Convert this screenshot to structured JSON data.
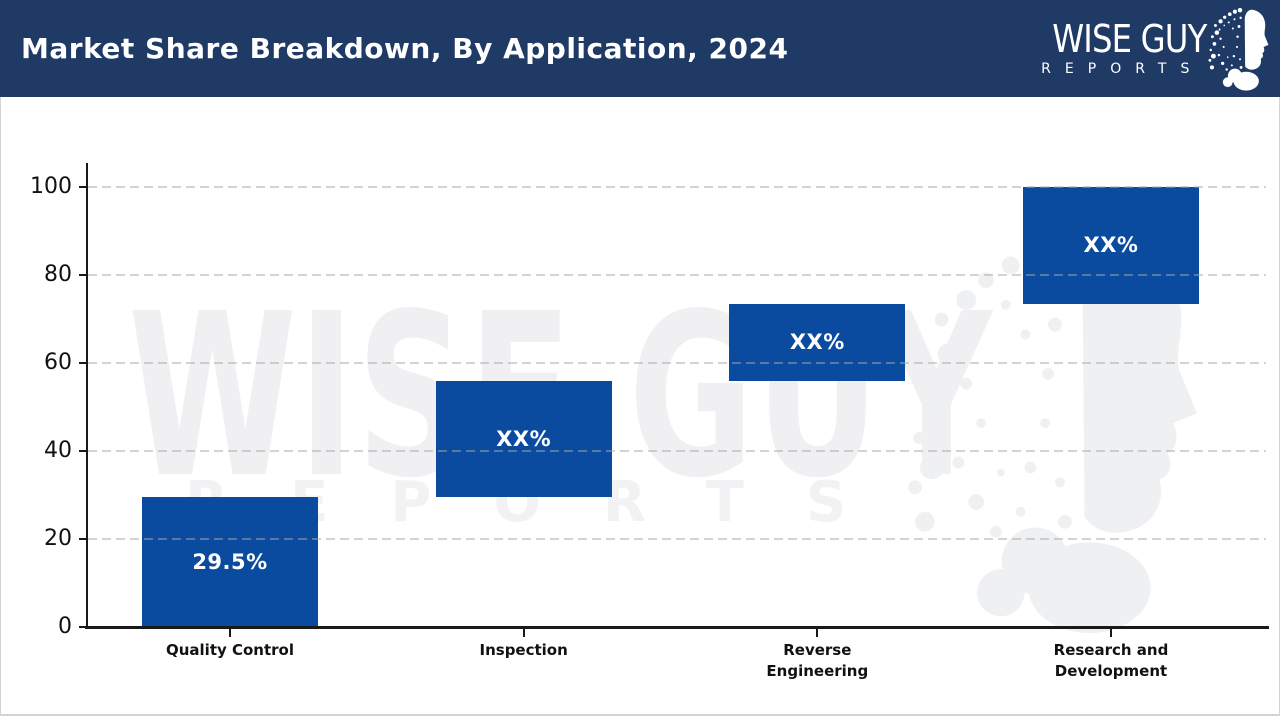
{
  "header": {
    "title": "Market Share Breakdown, By Application, 2024",
    "logo_line1": "WISE GUY",
    "logo_line2": "REPORTS"
  },
  "watermark": {
    "line1": "WISE GUY",
    "line2": "REPORTS"
  },
  "chart_data": {
    "type": "bar",
    "subtype": "floating-waterfall",
    "title": "Market Share Breakdown, By Application, 2024",
    "categories": [
      "Quality Control",
      "Inspection",
      "Reverse Engineering",
      "Research and Development"
    ],
    "category_label_lines": [
      [
        "Quality Control"
      ],
      [
        "Inspection"
      ],
      [
        "Reverse",
        "Engineering"
      ],
      [
        "Research and",
        "Development"
      ]
    ],
    "segments": [
      {
        "category": "Quality Control",
        "start": 0,
        "end": 29.5,
        "label": "29.5%"
      },
      {
        "category": "Inspection",
        "start": 29.5,
        "end": 56,
        "label": "XX%"
      },
      {
        "category": "Reverse Engineering",
        "start": 56,
        "end": 73.5,
        "label": "XX%"
      },
      {
        "category": "Research and Development",
        "start": 73.5,
        "end": 100,
        "label": "XX%"
      }
    ],
    "ylim": [
      0,
      100
    ],
    "yticks": [
      0,
      20,
      40,
      60,
      80,
      100
    ],
    "xlabel": "",
    "ylabel": "",
    "grid": "dashed-horizontal",
    "legend": "none",
    "bar_color": "#0b4b9f",
    "value_label_color": "#ffffff"
  },
  "colors": {
    "header_bg": "#203a66",
    "axis": "#1a1a1a",
    "watermark": "#f0f0f2"
  }
}
